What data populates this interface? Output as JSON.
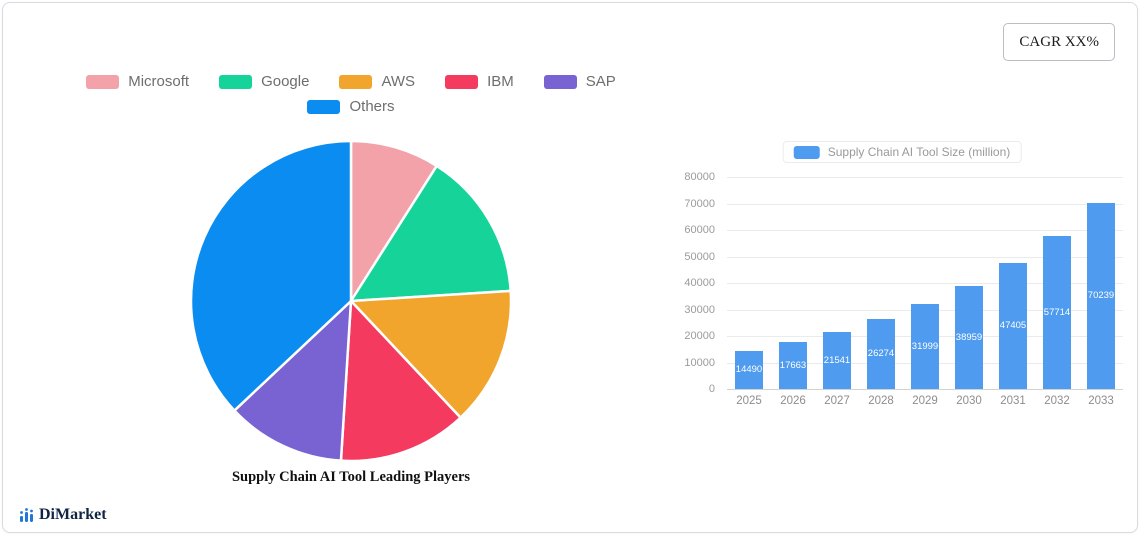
{
  "header": {
    "cagr_label": "CAGR XX%"
  },
  "brand": {
    "name": "DiMarket",
    "accent": "#2176d9"
  },
  "chart_data": [
    {
      "type": "pie",
      "title": "Supply Chain AI Tool Leading Players",
      "labels": [
        "Microsoft",
        "Google",
        "AWS",
        "IBM",
        "SAP",
        "Others"
      ],
      "values_percent": [
        9,
        15,
        14,
        13,
        12,
        37
      ],
      "colors": [
        "#F2A2A8",
        "#16D39A",
        "#F2A52D",
        "#F43A5F",
        "#7963D2",
        "#0A8CF0"
      ],
      "legend_position": "top",
      "slice_border_color": "#ffffff"
    },
    {
      "type": "bar",
      "title": "Supply Chain AI Tool Size (million)",
      "categories": [
        "2025",
        "2026",
        "2027",
        "2028",
        "2029",
        "2030",
        "2031",
        "2032",
        "2033"
      ],
      "values": [
        14490,
        17663,
        21541,
        26274,
        31999,
        38959,
        47405,
        57714,
        70239
      ],
      "ylim": [
        0,
        80000
      ],
      "yticks": [
        0,
        10000,
        20000,
        30000,
        40000,
        50000,
        60000,
        70000,
        80000
      ],
      "bar_color": "#4E9BF0",
      "value_label_color": "#ffffff",
      "legend_position": "top",
      "grid": true
    }
  ]
}
